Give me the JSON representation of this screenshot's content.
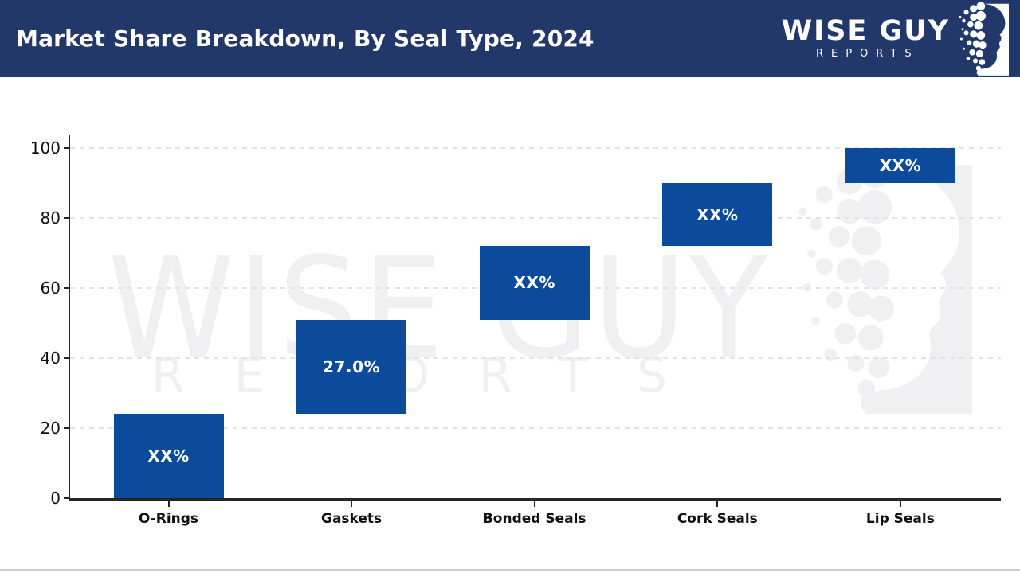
{
  "header": {
    "title": "Market Share Breakdown, By Seal Type, 2024",
    "bg_color": "#22386a",
    "logo": {
      "line1": "WISE GUY",
      "line2": "REPORTS"
    }
  },
  "watermark": {
    "line1": "WISE GUY",
    "line2": "REPORTS"
  },
  "chart_data": {
    "type": "bar",
    "variant": "floating-waterfall",
    "title": "Market Share Breakdown, By Seal Type, 2024",
    "categories": [
      "O-Rings",
      "Gaskets",
      "Bonded Seals",
      "Cork Seals",
      "Lip Seals"
    ],
    "series": [
      {
        "name": "Market share (%)",
        "ranges": [
          [
            0,
            24
          ],
          [
            24,
            51
          ],
          [
            51,
            72
          ],
          [
            72,
            90
          ],
          [
            90,
            100
          ]
        ],
        "labels": [
          "XX%",
          "27.0%",
          "XX%",
          "XX%",
          "XX%"
        ]
      }
    ],
    "xlabel": "",
    "ylabel": "",
    "yticks": [
      0,
      20,
      40,
      60,
      80,
      100
    ],
    "ylim": [
      0,
      104
    ],
    "grid": "horizontal-dashed",
    "legend": "none",
    "bar_color": "#0c4a9c",
    "axis_color": "#262626",
    "gridline_color": "#e3e3e3"
  }
}
